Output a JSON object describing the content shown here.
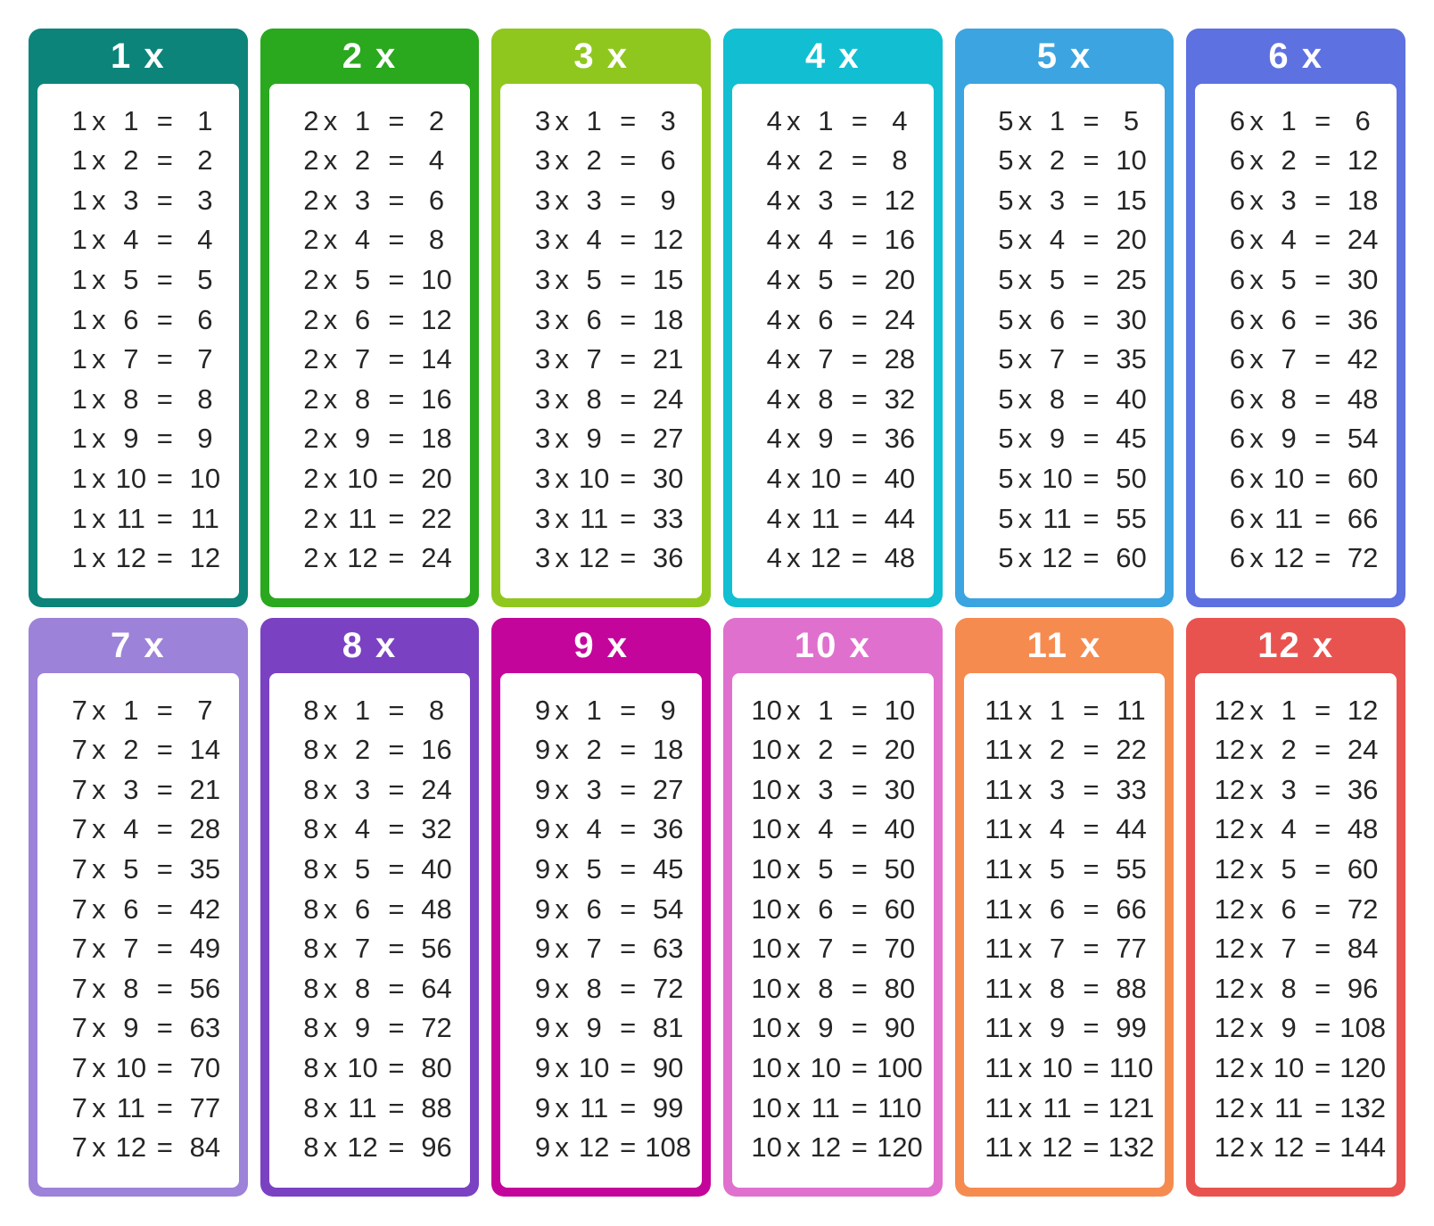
{
  "page": {
    "background": "#ffffff",
    "text_color": "#262626"
  },
  "symbols": {
    "times": "x",
    "equals": "="
  },
  "tables": [
    {
      "title": "1 x",
      "color": "#0d847a",
      "rows": [
        [
          "1",
          "1",
          "1"
        ],
        [
          "1",
          "2",
          "2"
        ],
        [
          "1",
          "3",
          "3"
        ],
        [
          "1",
          "4",
          "4"
        ],
        [
          "1",
          "5",
          "5"
        ],
        [
          "1",
          "6",
          "6"
        ],
        [
          "1",
          "7",
          "7"
        ],
        [
          "1",
          "8",
          "8"
        ],
        [
          "1",
          "9",
          "9"
        ],
        [
          "1",
          "10",
          "10"
        ],
        [
          "1",
          "11",
          "11"
        ],
        [
          "1",
          "12",
          "12"
        ]
      ]
    },
    {
      "title": "2 x",
      "color": "#2aa81e",
      "rows": [
        [
          "2",
          "1",
          "2"
        ],
        [
          "2",
          "2",
          "4"
        ],
        [
          "2",
          "3",
          "6"
        ],
        [
          "2",
          "4",
          "8"
        ],
        [
          "2",
          "5",
          "10"
        ],
        [
          "2",
          "6",
          "12"
        ],
        [
          "2",
          "7",
          "14"
        ],
        [
          "2",
          "8",
          "16"
        ],
        [
          "2",
          "9",
          "18"
        ],
        [
          "2",
          "10",
          "20"
        ],
        [
          "2",
          "11",
          "22"
        ],
        [
          "2",
          "12",
          "24"
        ]
      ]
    },
    {
      "title": "3 x",
      "color": "#8fc71e",
      "rows": [
        [
          "3",
          "1",
          "3"
        ],
        [
          "3",
          "2",
          "6"
        ],
        [
          "3",
          "3",
          "9"
        ],
        [
          "3",
          "4",
          "12"
        ],
        [
          "3",
          "5",
          "15"
        ],
        [
          "3",
          "6",
          "18"
        ],
        [
          "3",
          "7",
          "21"
        ],
        [
          "3",
          "8",
          "24"
        ],
        [
          "3",
          "9",
          "27"
        ],
        [
          "3",
          "10",
          "30"
        ],
        [
          "3",
          "11",
          "33"
        ],
        [
          "3",
          "12",
          "36"
        ]
      ]
    },
    {
      "title": "4 x",
      "color": "#12bed2",
      "rows": [
        [
          "4",
          "1",
          "4"
        ],
        [
          "4",
          "2",
          "8"
        ],
        [
          "4",
          "3",
          "12"
        ],
        [
          "4",
          "4",
          "16"
        ],
        [
          "4",
          "5",
          "20"
        ],
        [
          "4",
          "6",
          "24"
        ],
        [
          "4",
          "7",
          "28"
        ],
        [
          "4",
          "8",
          "32"
        ],
        [
          "4",
          "9",
          "36"
        ],
        [
          "4",
          "10",
          "40"
        ],
        [
          "4",
          "11",
          "44"
        ],
        [
          "4",
          "12",
          "48"
        ]
      ]
    },
    {
      "title": "5 x",
      "color": "#3ca4e0",
      "rows": [
        [
          "5",
          "1",
          "5"
        ],
        [
          "5",
          "2",
          "10"
        ],
        [
          "5",
          "3",
          "15"
        ],
        [
          "5",
          "4",
          "20"
        ],
        [
          "5",
          "5",
          "25"
        ],
        [
          "5",
          "6",
          "30"
        ],
        [
          "5",
          "7",
          "35"
        ],
        [
          "5",
          "8",
          "40"
        ],
        [
          "5",
          "9",
          "45"
        ],
        [
          "5",
          "10",
          "50"
        ],
        [
          "5",
          "11",
          "55"
        ],
        [
          "5",
          "12",
          "60"
        ]
      ]
    },
    {
      "title": "6 x",
      "color": "#5e71e0",
      "rows": [
        [
          "6",
          "1",
          "6"
        ],
        [
          "6",
          "2",
          "12"
        ],
        [
          "6",
          "3",
          "18"
        ],
        [
          "6",
          "4",
          "24"
        ],
        [
          "6",
          "5",
          "30"
        ],
        [
          "6",
          "6",
          "36"
        ],
        [
          "6",
          "7",
          "42"
        ],
        [
          "6",
          "8",
          "48"
        ],
        [
          "6",
          "9",
          "54"
        ],
        [
          "6",
          "10",
          "60"
        ],
        [
          "6",
          "11",
          "66"
        ],
        [
          "6",
          "12",
          "72"
        ]
      ]
    },
    {
      "title": "7 x",
      "color": "#9c82d8",
      "rows": [
        [
          "7",
          "1",
          "7"
        ],
        [
          "7",
          "2",
          "14"
        ],
        [
          "7",
          "3",
          "21"
        ],
        [
          "7",
          "4",
          "28"
        ],
        [
          "7",
          "5",
          "35"
        ],
        [
          "7",
          "6",
          "42"
        ],
        [
          "7",
          "7",
          "49"
        ],
        [
          "7",
          "8",
          "56"
        ],
        [
          "7",
          "9",
          "63"
        ],
        [
          "7",
          "10",
          "70"
        ],
        [
          "7",
          "11",
          "77"
        ],
        [
          "7",
          "12",
          "84"
        ]
      ]
    },
    {
      "title": "8 x",
      "color": "#7a42c2",
      "rows": [
        [
          "8",
          "1",
          "8"
        ],
        [
          "8",
          "2",
          "16"
        ],
        [
          "8",
          "3",
          "24"
        ],
        [
          "8",
          "4",
          "32"
        ],
        [
          "8",
          "5",
          "40"
        ],
        [
          "8",
          "6",
          "48"
        ],
        [
          "8",
          "7",
          "56"
        ],
        [
          "8",
          "8",
          "64"
        ],
        [
          "8",
          "9",
          "72"
        ],
        [
          "8",
          "10",
          "80"
        ],
        [
          "8",
          "11",
          "88"
        ],
        [
          "8",
          "12",
          "96"
        ]
      ]
    },
    {
      "title": "9 x",
      "color": "#c4059b",
      "rows": [
        [
          "9",
          "1",
          "9"
        ],
        [
          "9",
          "2",
          "18"
        ],
        [
          "9",
          "3",
          "27"
        ],
        [
          "9",
          "4",
          "36"
        ],
        [
          "9",
          "5",
          "45"
        ],
        [
          "9",
          "6",
          "54"
        ],
        [
          "9",
          "7",
          "63"
        ],
        [
          "9",
          "8",
          "72"
        ],
        [
          "9",
          "9",
          "81"
        ],
        [
          "9",
          "10",
          "90"
        ],
        [
          "9",
          "11",
          "99"
        ],
        [
          "9",
          "12",
          "108"
        ]
      ]
    },
    {
      "title": "10 x",
      "color": "#e070ce",
      "rows": [
        [
          "10",
          "1",
          "10"
        ],
        [
          "10",
          "2",
          "20"
        ],
        [
          "10",
          "3",
          "30"
        ],
        [
          "10",
          "4",
          "40"
        ],
        [
          "10",
          "5",
          "50"
        ],
        [
          "10",
          "6",
          "60"
        ],
        [
          "10",
          "7",
          "70"
        ],
        [
          "10",
          "8",
          "80"
        ],
        [
          "10",
          "9",
          "90"
        ],
        [
          "10",
          "10",
          "100"
        ],
        [
          "10",
          "11",
          "110"
        ],
        [
          "10",
          "12",
          "120"
        ]
      ]
    },
    {
      "title": "11 x",
      "color": "#f68b50",
      "rows": [
        [
          "11",
          "1",
          "11"
        ],
        [
          "11",
          "2",
          "22"
        ],
        [
          "11",
          "3",
          "33"
        ],
        [
          "11",
          "4",
          "44"
        ],
        [
          "11",
          "5",
          "55"
        ],
        [
          "11",
          "6",
          "66"
        ],
        [
          "11",
          "7",
          "77"
        ],
        [
          "11",
          "8",
          "88"
        ],
        [
          "11",
          "9",
          "99"
        ],
        [
          "11",
          "10",
          "110"
        ],
        [
          "11",
          "11",
          "121"
        ],
        [
          "11",
          "12",
          "132"
        ]
      ]
    },
    {
      "title": "12 x",
      "color": "#e9534f",
      "rows": [
        [
          "12",
          "1",
          "12"
        ],
        [
          "12",
          "2",
          "24"
        ],
        [
          "12",
          "3",
          "36"
        ],
        [
          "12",
          "4",
          "48"
        ],
        [
          "12",
          "5",
          "60"
        ],
        [
          "12",
          "6",
          "72"
        ],
        [
          "12",
          "7",
          "84"
        ],
        [
          "12",
          "8",
          "96"
        ],
        [
          "12",
          "9",
          "108"
        ],
        [
          "12",
          "10",
          "120"
        ],
        [
          "12",
          "11",
          "132"
        ],
        [
          "12",
          "12",
          "144"
        ]
      ]
    }
  ]
}
